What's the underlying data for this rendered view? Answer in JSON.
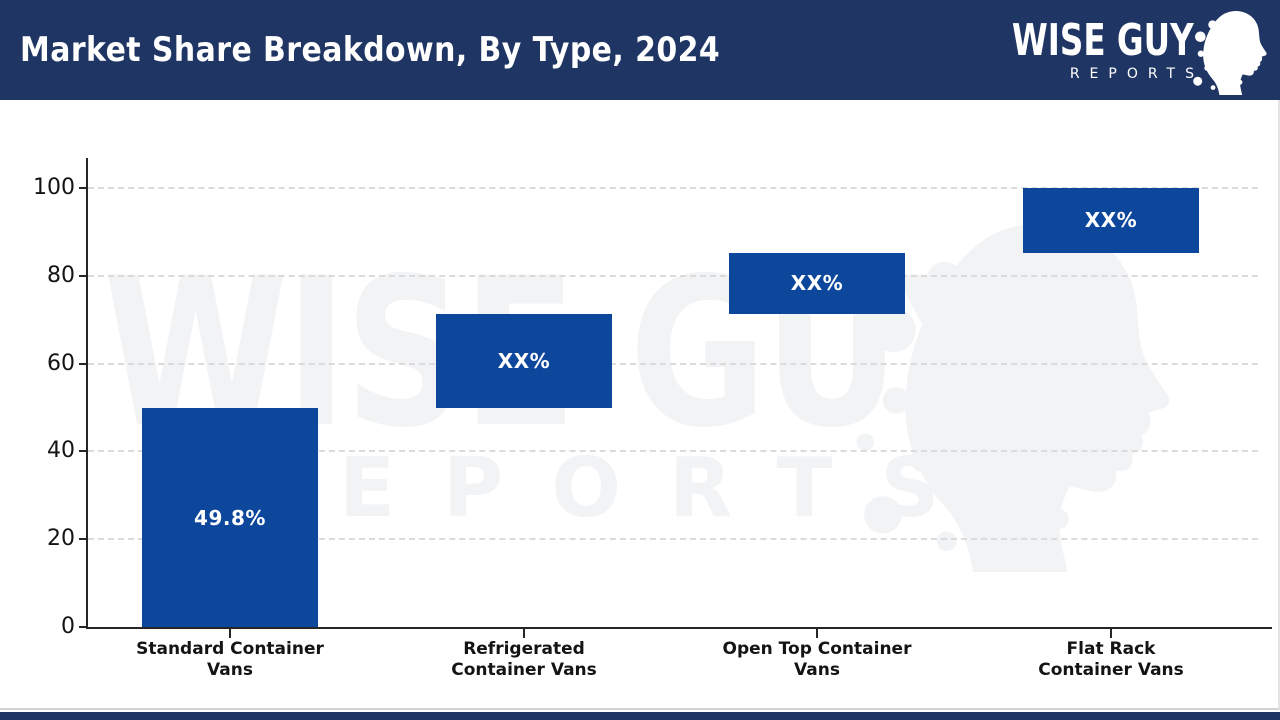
{
  "header": {
    "title": "Market Share Breakdown, By Type, 2024",
    "bg_color": "#1F3563",
    "brand": {
      "name": "WISE GUY",
      "sub": "REPORTS",
      "face_icon": "dotted-head-profile"
    }
  },
  "watermark": {
    "line1": "WISE GUY",
    "line2": "REPORTS",
    "face_icon": "dotted-head-profile"
  },
  "chart_data": {
    "type": "bar",
    "subtype": "waterfall",
    "title": "Market Share Breakdown, By Type, 2024",
    "categories": [
      "Standard Container Vans",
      "Refrigerated Container Vans",
      "Open Top Container Vans",
      "Flat Rack Container Vans"
    ],
    "category_label_lines": [
      [
        "Standard Container",
        "Vans"
      ],
      [
        "Refrigerated",
        "Container Vans"
      ],
      [
        "Open Top Container",
        "Vans"
      ],
      [
        "Flat Rack",
        "Container Vans"
      ]
    ],
    "segments": [
      {
        "category": "Standard Container Vans",
        "start": 0,
        "end": 49.8,
        "label": "49.8%"
      },
      {
        "category": "Refrigerated Container Vans",
        "start": 49.8,
        "end": 71.3,
        "label": "XX%"
      },
      {
        "category": "Open Top Container Vans",
        "start": 71.3,
        "end": 85.3,
        "label": "XX%"
      },
      {
        "category": "Flat Rack Container Vans",
        "start": 85.3,
        "end": 100,
        "label": "XX%"
      }
    ],
    "ylim": [
      0,
      100
    ],
    "yticks": [
      0,
      20,
      40,
      60,
      80,
      100
    ],
    "xlabel": "",
    "ylabel": "",
    "grid": "horizontal-dashed",
    "legend": "none",
    "bar_color": "#0D479C",
    "bar_label_color": "#FFFFFF"
  },
  "colors": {
    "header_bg": "#1F3563",
    "bar": "#0D479C",
    "gridline": "#DBDBDB",
    "axis": "#262626",
    "watermark": "#F2F3F5",
    "bottom_strip": "#1F3563"
  }
}
